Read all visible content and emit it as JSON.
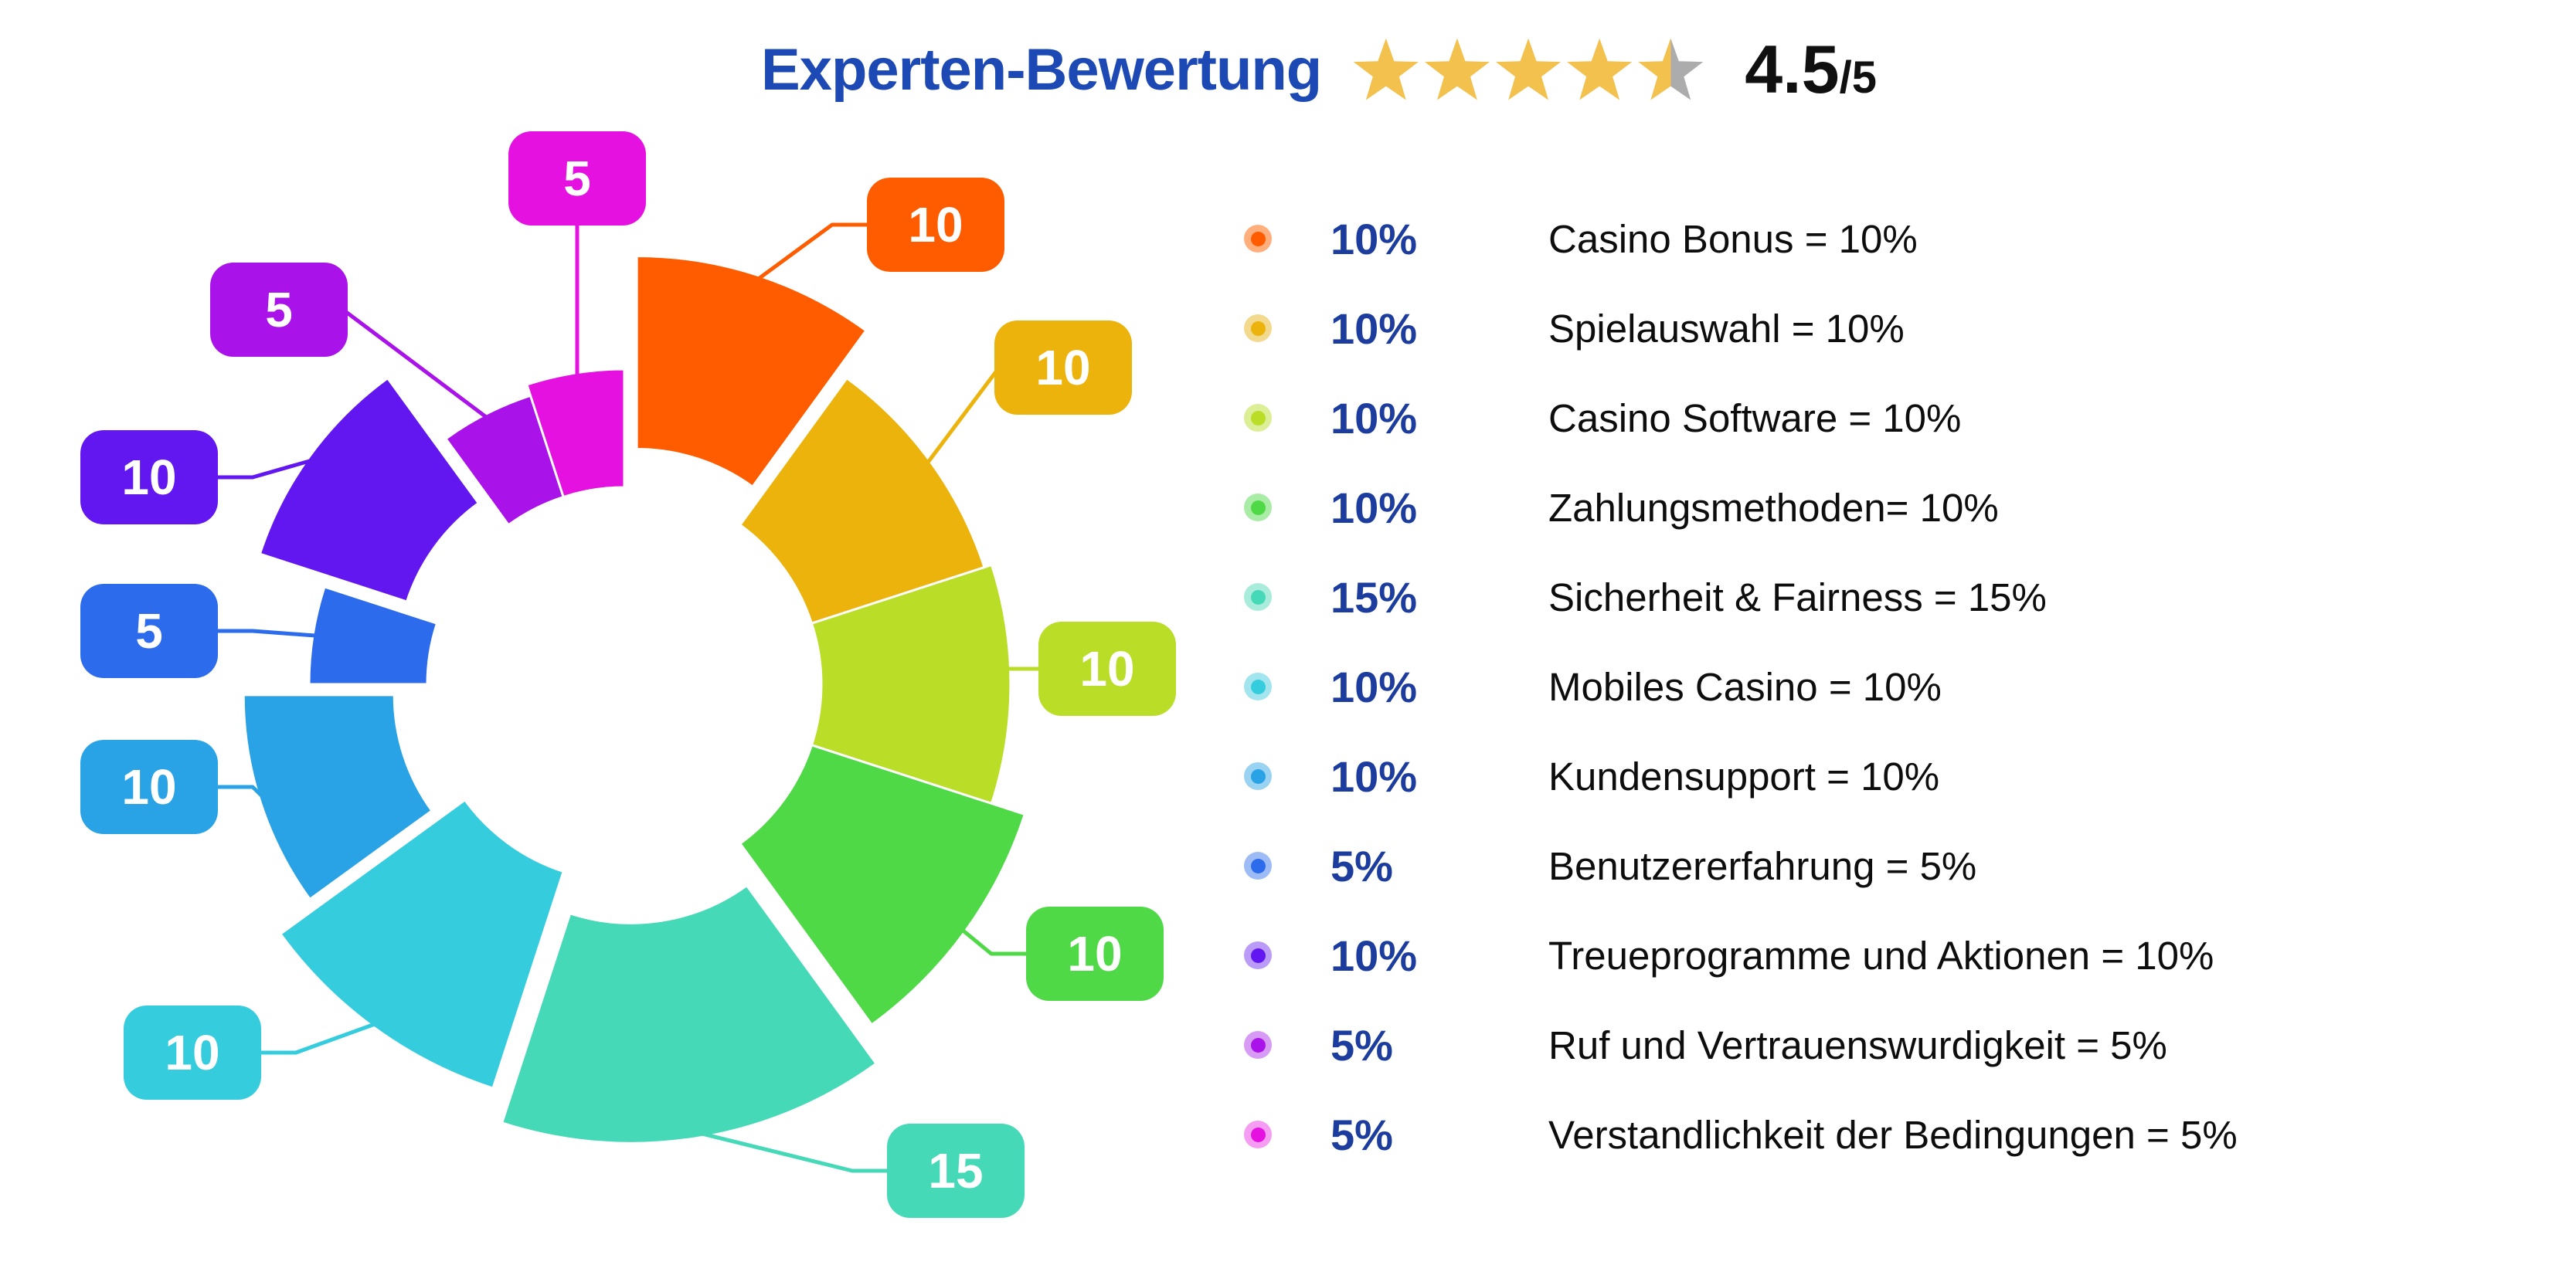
{
  "header": {
    "title": "Experten-Bewertung",
    "title_color": "#1D49B5",
    "rating_value": "4.5",
    "rating_suffix": "/5",
    "rating_color": "#101010",
    "stars": {
      "count": 5,
      "full": 4,
      "half": 1,
      "fill_color": "#F2C14E",
      "empty_color": "#ACACAC"
    }
  },
  "chart_data": {
    "type": "pie",
    "subtype": "exploded-donut",
    "title": "Experten-Bewertung",
    "unit": "%",
    "total": 100,
    "direction": "clockwise",
    "start_angle": "12-oclock",
    "categories": [
      "Casino Bonus",
      "Spielauswahl",
      "Casino Software",
      "Zahlungsmethoden",
      "Sicherheit & Fairness",
      "Mobiles Casino",
      "Kundensupport",
      "Benutzererfahrung",
      "Treueprogramme und Aktionen",
      "Ruf und Vertrauenswurdigkeit",
      "Verstandlichkeit der Bedingungen"
    ],
    "values": [
      10,
      10,
      10,
      10,
      15,
      10,
      10,
      5,
      10,
      5,
      5
    ],
    "colors": [
      "#FF5C00",
      "#ECB30C",
      "#BADE28",
      "#4FD947",
      "#45D9B8",
      "#35CCDE",
      "#29A3E5",
      "#2B6BEC",
      "#6217F0",
      "#A912E9",
      "#E411E0"
    ],
    "tints": [
      "#FFAE7C",
      "#F3D98E",
      "#DCEE96",
      "#A9ECA5",
      "#A9ECDC",
      "#A2E5EE",
      "#9AD3F2",
      "#9DBCF6",
      "#BA9BF8",
      "#D79AF5",
      "#F49DF2"
    ],
    "callout_labels": [
      "10",
      "10",
      "10",
      "10",
      "15",
      "10",
      "10",
      "5",
      "10",
      "5",
      "5"
    ],
    "legend": {
      "position": "right",
      "percent_color": "#1C3D9E",
      "entries": [
        {
          "percent": "10%",
          "text": "Casino Bonus = 10%"
        },
        {
          "percent": "10%",
          "text": "Spielauswahl = 10%"
        },
        {
          "percent": "10%",
          "text": "Casino Software = 10%"
        },
        {
          "percent": "10%",
          "text": "Zahlungsmethoden= 10%"
        },
        {
          "percent": "15%",
          "text": "Sicherheit & Fairness = 15%"
        },
        {
          "percent": "10%",
          "text": "Mobiles Casino = 10%"
        },
        {
          "percent": "10%",
          "text": "Kundensupport = 10%"
        },
        {
          "percent": "5%",
          "text": "Benutzererfahrung = 5%"
        },
        {
          "percent": "10%",
          "text": "Treueprogramme und Aktionen = 10%"
        },
        {
          "percent": "5%",
          "text": "Ruf und Vertrauenswurdigkeit = 5%"
        },
        {
          "percent": "5%",
          "text": "Verstandlichkeit der Bedingungen = 5%"
        }
      ]
    }
  }
}
